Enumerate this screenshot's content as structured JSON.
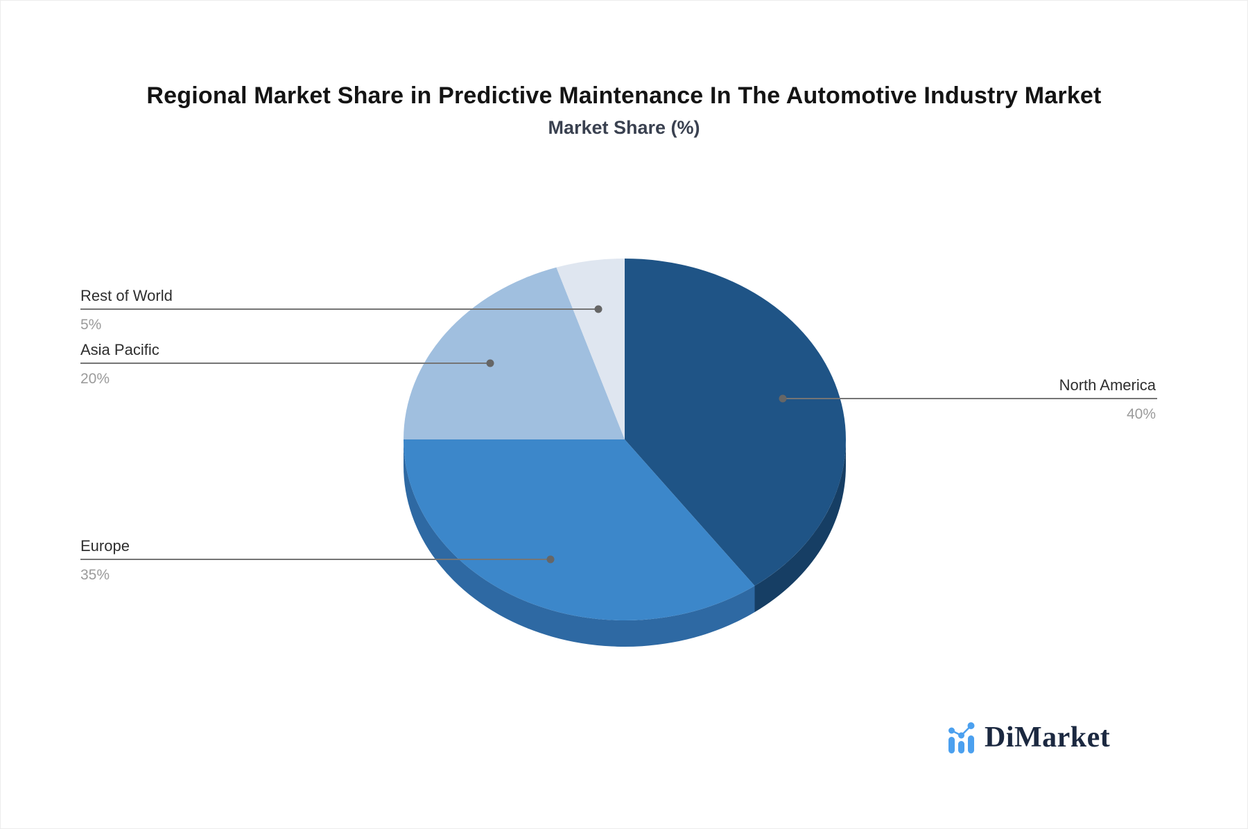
{
  "header": {
    "title": "Regional Market Share in Predictive Maintenance In The Automotive Industry Market",
    "subtitle": "Market Share (%)"
  },
  "chart_data": {
    "type": "pie",
    "style": "3d-pie",
    "title": "Regional Market Share in Predictive Maintenance In The Automotive Industry Market",
    "subtitle": "Market Share (%)",
    "unit": "%",
    "start_angle_deg_from_top": 0,
    "direction": "clockwise",
    "labels": [
      "North America",
      "Europe",
      "Asia Pacific",
      "Rest of World"
    ],
    "values": [
      40,
      35,
      20,
      5
    ],
    "pct_labels": [
      "40%",
      "35%",
      "20%",
      "5%"
    ],
    "colors": [
      "#1F5486",
      "#3C87CA",
      "#A0BFDF",
      "#DFE6F0"
    ],
    "side_colors": [
      "#163E64",
      "#2E69A3",
      "#84A3C4",
      "#C4D1E2"
    ],
    "legend_position": "callout-labels",
    "leader_line_color": "#757575",
    "leader_dot_color": "#666666",
    "label_color": "#2e2e2e",
    "pct_color": "#9b9b9b"
  },
  "logo": {
    "text": "DiMarket",
    "icon": "bar-line-chart-logo-icon",
    "text_color": "#1b2840",
    "icon_color": "#4BA0EF"
  }
}
